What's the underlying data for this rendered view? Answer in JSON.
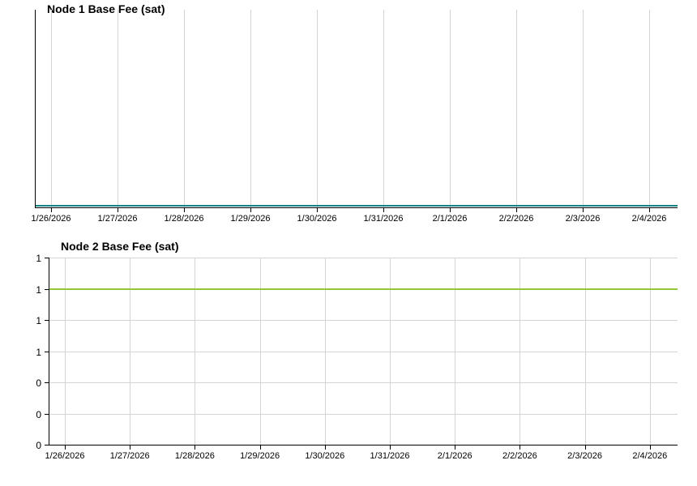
{
  "page": {
    "background_color": "#ffffff",
    "grid_color": "#d4d4d4",
    "axis_color": "#000000"
  },
  "chart_data": [
    {
      "type": "line",
      "title": "Node 1 Base Fee (sat)",
      "categories": [
        "1/26/2026",
        "1/27/2026",
        "1/28/2026",
        "1/29/2026",
        "1/30/2026",
        "1/31/2026",
        "2/1/2026",
        "2/2/2026",
        "2/3/2026",
        "2/4/2026"
      ],
      "series": [
        {
          "name": "Node 1 Base Fee",
          "values": [
            0,
            0,
            0,
            0,
            0,
            0,
            0,
            0,
            0,
            0
          ],
          "color": "#148489"
        }
      ],
      "xlabel": "",
      "ylabel": "",
      "y_tick_labels": [],
      "grid": "vertical-only",
      "legend": "none"
    },
    {
      "type": "line",
      "title": "Node 2 Base Fee (sat)",
      "categories": [
        "1/26/2026",
        "1/27/2026",
        "1/28/2026",
        "1/29/2026",
        "1/30/2026",
        "1/31/2026",
        "2/1/2026",
        "2/2/2026",
        "2/3/2026",
        "2/4/2026"
      ],
      "series": [
        {
          "name": "Node 2 Base Fee",
          "values": [
            1,
            1,
            1,
            1,
            1,
            1,
            1,
            1,
            1,
            1
          ],
          "color": "#93c83d"
        }
      ],
      "xlabel": "",
      "ylabel": "",
      "y_tick_labels": [
        "1",
        "1",
        "1",
        "1",
        "0",
        "0",
        "0"
      ],
      "grid": "both",
      "legend": "none"
    }
  ]
}
